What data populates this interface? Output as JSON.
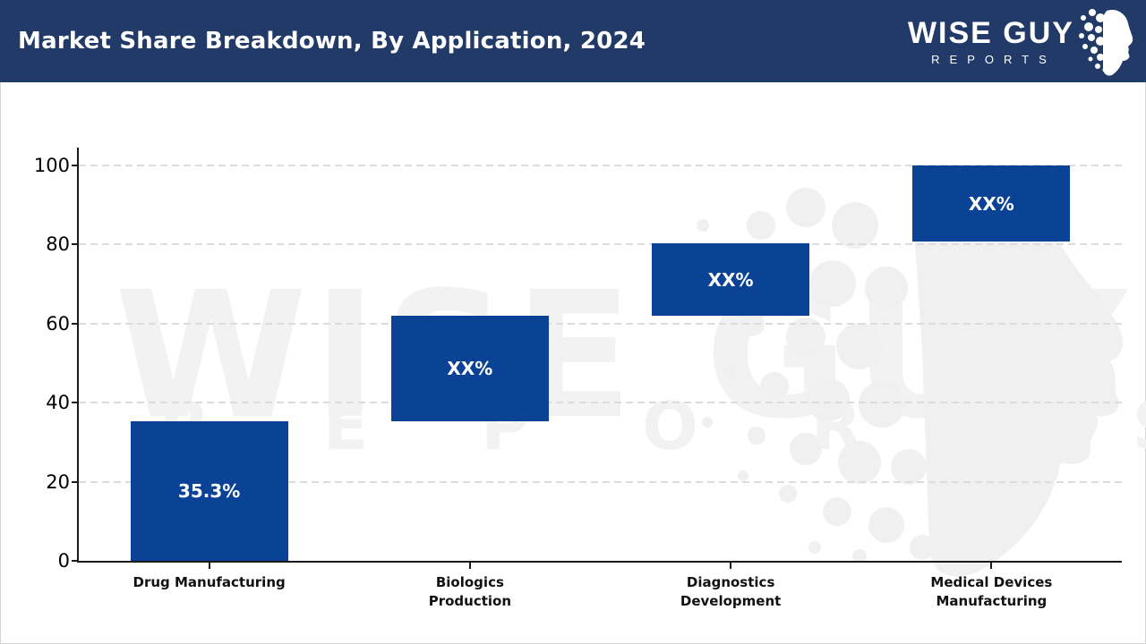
{
  "header": {
    "title": "Market Share Breakdown, By Application, 2024",
    "logo": {
      "line1": "WISE GUY",
      "line2": "REPORTS"
    }
  },
  "watermark": {
    "line1": "WISE GUY",
    "line2": "R E P O R T S"
  },
  "colors": {
    "header_bg": "#213a67",
    "header_text": "#ffffff",
    "bar": "#0a4396",
    "bar_label": "#ffffff",
    "grid": "#dcdcdc",
    "axis": "#1a1a1a",
    "watermark": "#f2f2f2",
    "page_border": "#d5d5d7"
  },
  "chart_data": {
    "type": "bar",
    "subtype": "waterfall",
    "title": "Market Share Breakdown, By Application, 2024",
    "categories": [
      "Drug Manufacturing",
      "Biologics Production",
      "Diagnostics Development",
      "Medical Devices Manufacturing"
    ],
    "category_lines": [
      [
        "Drug Manufacturing"
      ],
      [
        "Biologics",
        "Production"
      ],
      [
        "Diagnostics",
        "Development"
      ],
      [
        "Medical Devices",
        "Manufacturing"
      ]
    ],
    "bars": [
      {
        "label": "35.3%",
        "start": 0,
        "end": 35.3
      },
      {
        "label": "XX%",
        "start": 35.3,
        "end": 62
      },
      {
        "label": "XX%",
        "start": 62,
        "end": 80.3
      },
      {
        "label": "XX%",
        "start": 80.7,
        "end": 100
      }
    ],
    "y_ticks": [
      0,
      20,
      40,
      60,
      80,
      100
    ],
    "ylim": [
      0,
      100
    ],
    "xlabel": "",
    "ylabel": "",
    "grid": "dashed-horizontal",
    "legend": "none"
  }
}
